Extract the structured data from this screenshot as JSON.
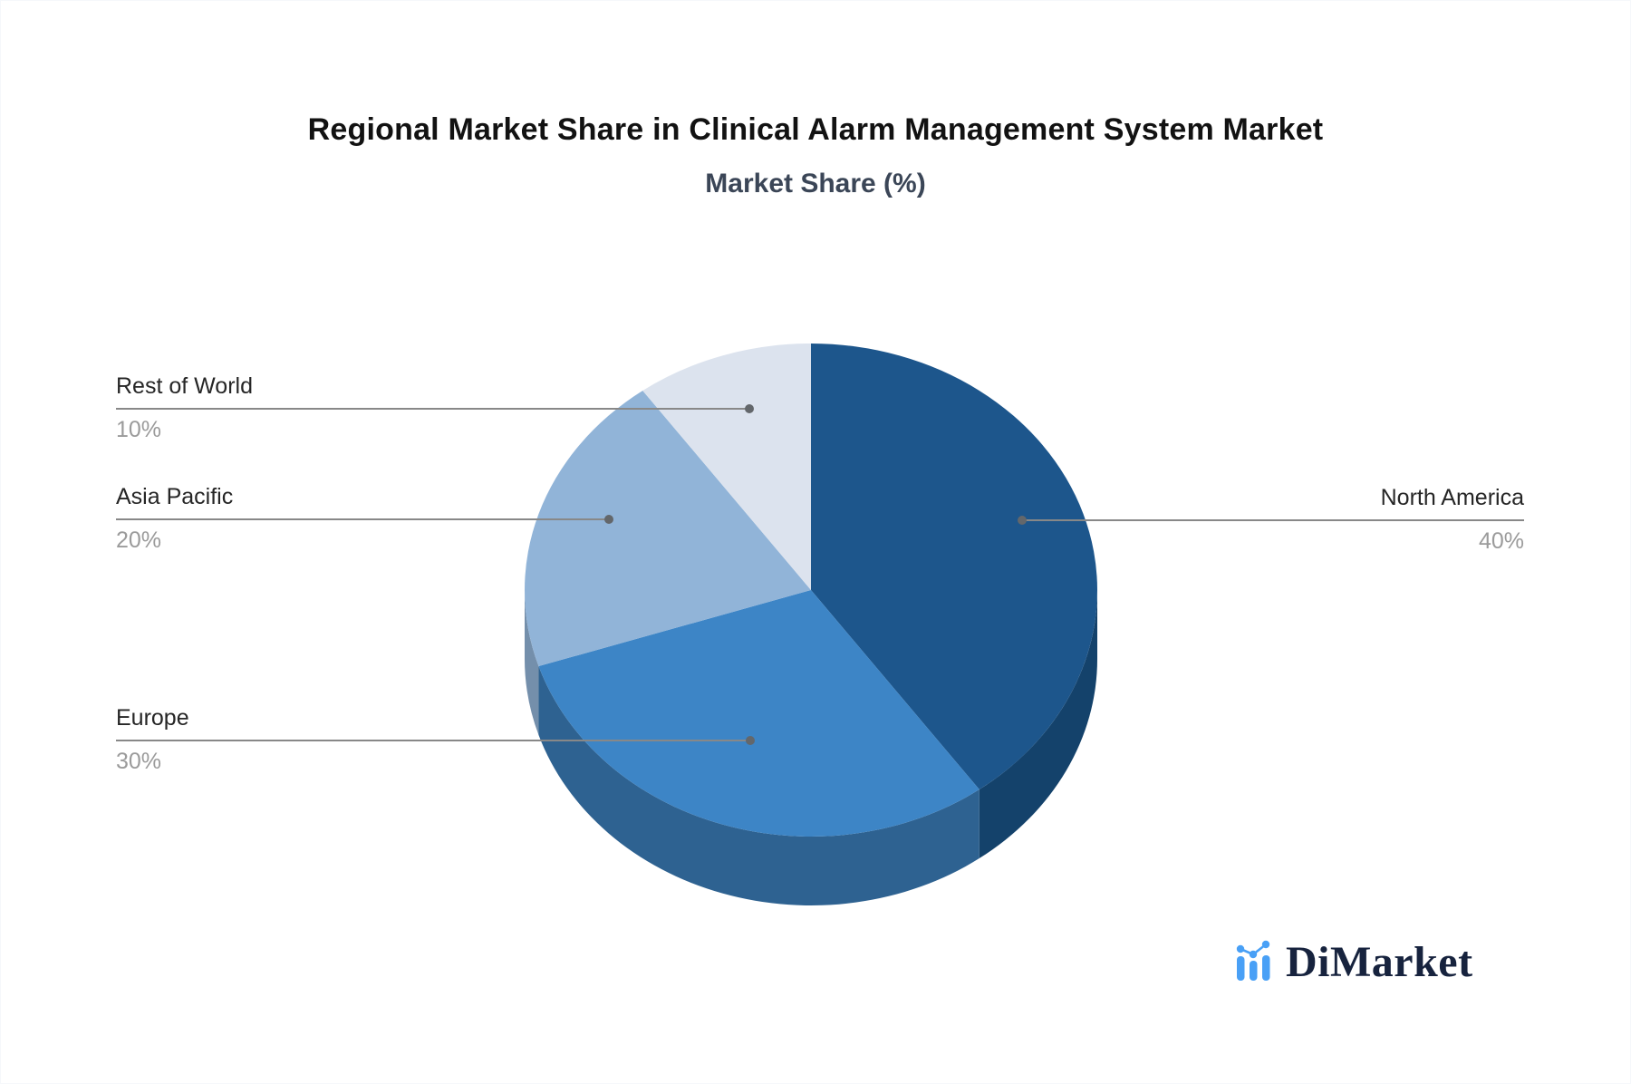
{
  "chart_data": {
    "type": "pie",
    "style": "3d",
    "title": "Regional Market Share in Clinical Alarm Management System Market",
    "subtitle": "Market Share (%)",
    "unit": "%",
    "order": "clockwise-from-top",
    "legend_position": "none",
    "label_style": "leader-lines",
    "slices": [
      {
        "label": "North America",
        "value": 40,
        "display": "40%",
        "color": "#1d568c",
        "side_color": "#14426b"
      },
      {
        "label": "Europe",
        "value": 30,
        "display": "30%",
        "color": "#3d85c6",
        "side_color": "#2e6291"
      },
      {
        "label": "Asia Pacific",
        "value": 20,
        "display": "20%",
        "color": "#91b4d8",
        "side_color": "#748fab"
      },
      {
        "label": "Rest of World",
        "value": 10,
        "display": "10%",
        "color": "#dce3ee",
        "side_color": "#b9c0cd"
      }
    ]
  },
  "logo": {
    "text": "DiMarket",
    "icon": "bar-chart-logo-icon",
    "accent_color": "#49a0f6",
    "text_color": "#17233e"
  },
  "colors": {
    "background": "#ffffff",
    "title_text": "#121212",
    "subtitle_text": "#3b4657",
    "label_text": "#262626",
    "value_text": "#9b9b9b",
    "leader_line": "#888888",
    "leader_dot": "#63676b"
  }
}
